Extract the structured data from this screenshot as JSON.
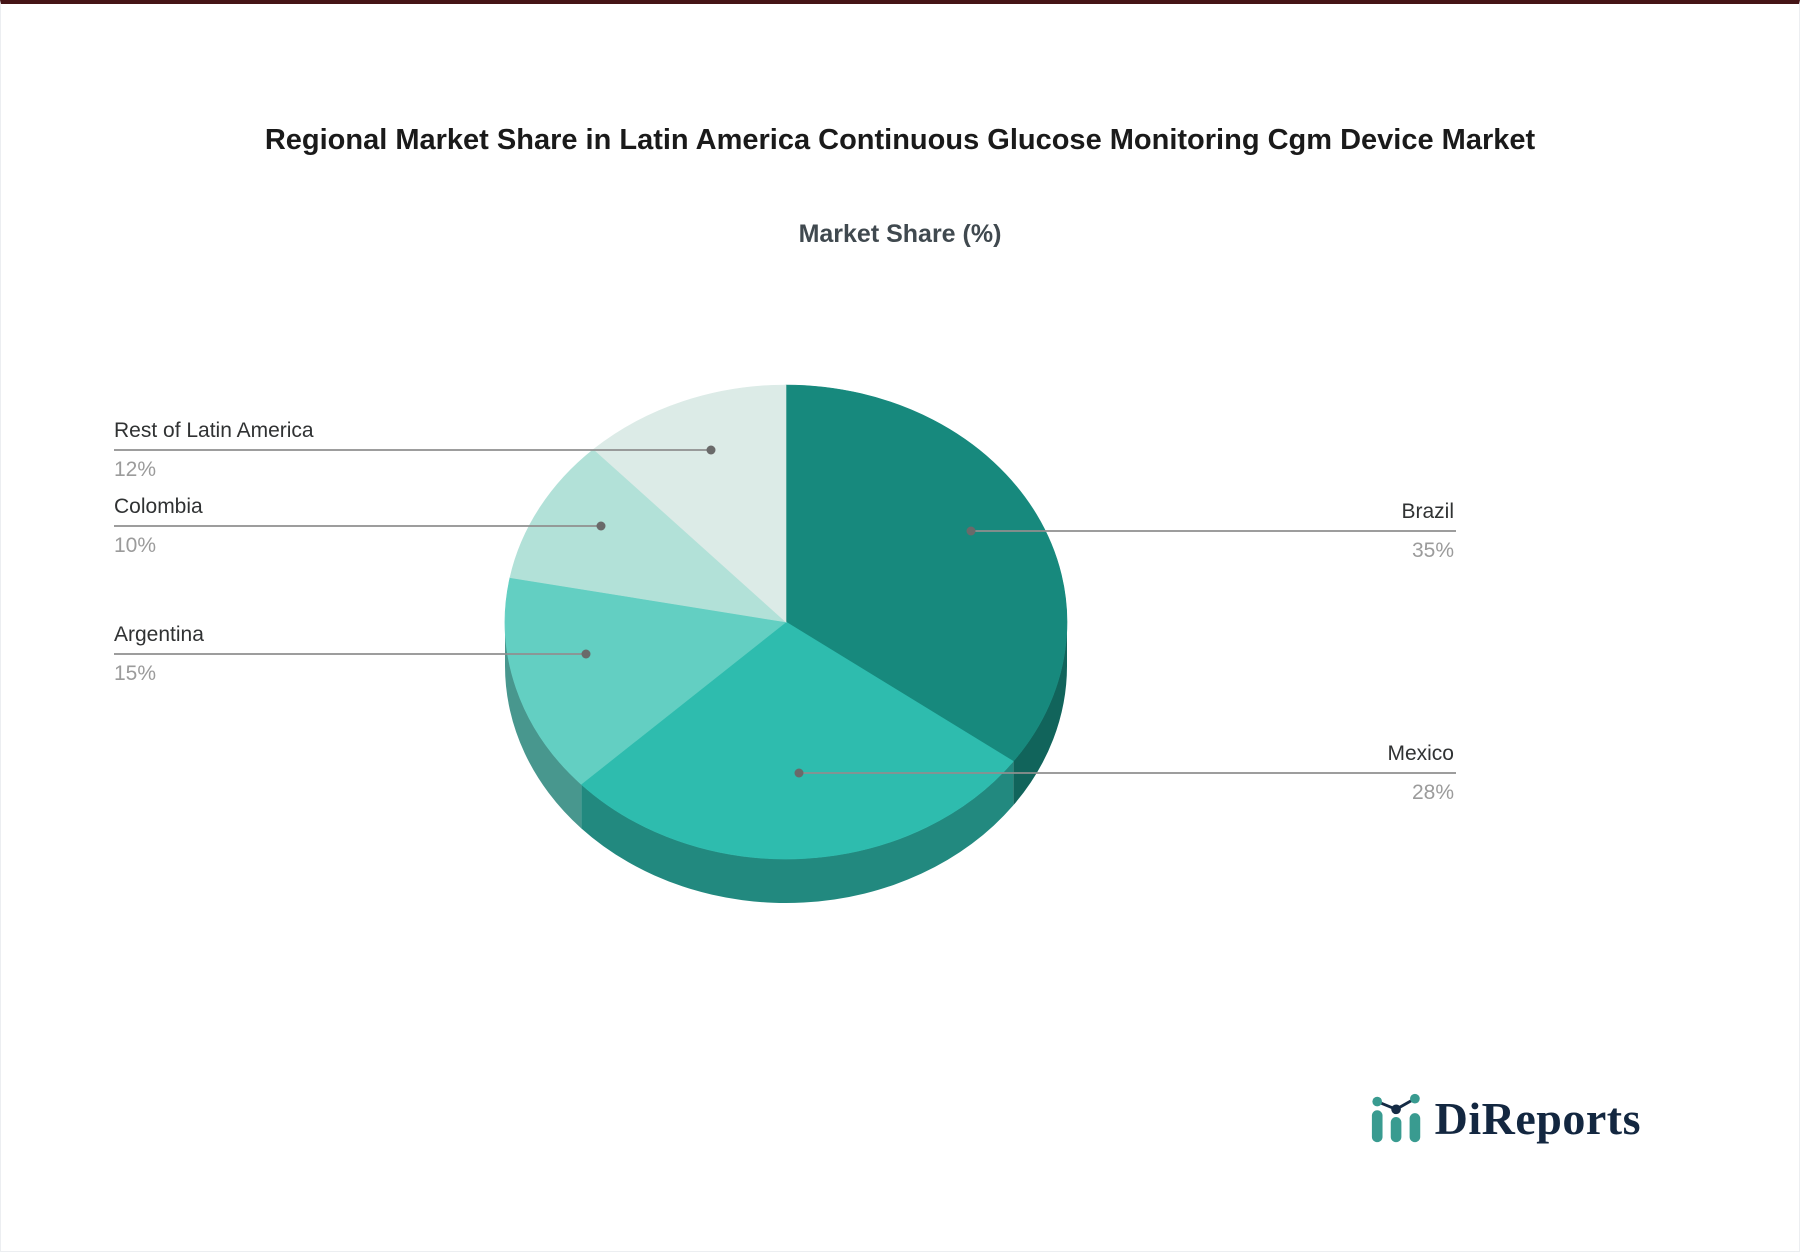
{
  "title": "Regional Market Share in Latin America Continuous Glucose Monitoring Cgm Device Market",
  "subtitle": "Market Share (%)",
  "logo": {
    "text": "DiReports"
  },
  "chart_data": {
    "type": "pie",
    "style": "3d",
    "title": "Regional Market Share in Latin America Continuous Glucose Monitoring Cgm Device Market",
    "subtitle": "Market Share (%)",
    "unit": "%",
    "start_angle_deg": 0,
    "direction": "clockwise",
    "legend": "none",
    "slices": [
      {
        "label": "Brazil",
        "value": 35,
        "pct_text": "35%",
        "color": "#17897d"
      },
      {
        "label": "Mexico",
        "value": 28,
        "pct_text": "28%",
        "color": "#2ebcae"
      },
      {
        "label": "Argentina",
        "value": 15,
        "pct_text": "15%",
        "color": "#63cfc2"
      },
      {
        "label": "Colombia",
        "value": 10,
        "pct_text": "10%",
        "color": "#b2e1d8"
      },
      {
        "label": "Rest of Latin America",
        "value": 12,
        "pct_text": "12%",
        "color": "#dcebe7"
      }
    ],
    "leader_line_color": "#8f8f8f",
    "leader_dot_color": "#6a6a6a"
  }
}
